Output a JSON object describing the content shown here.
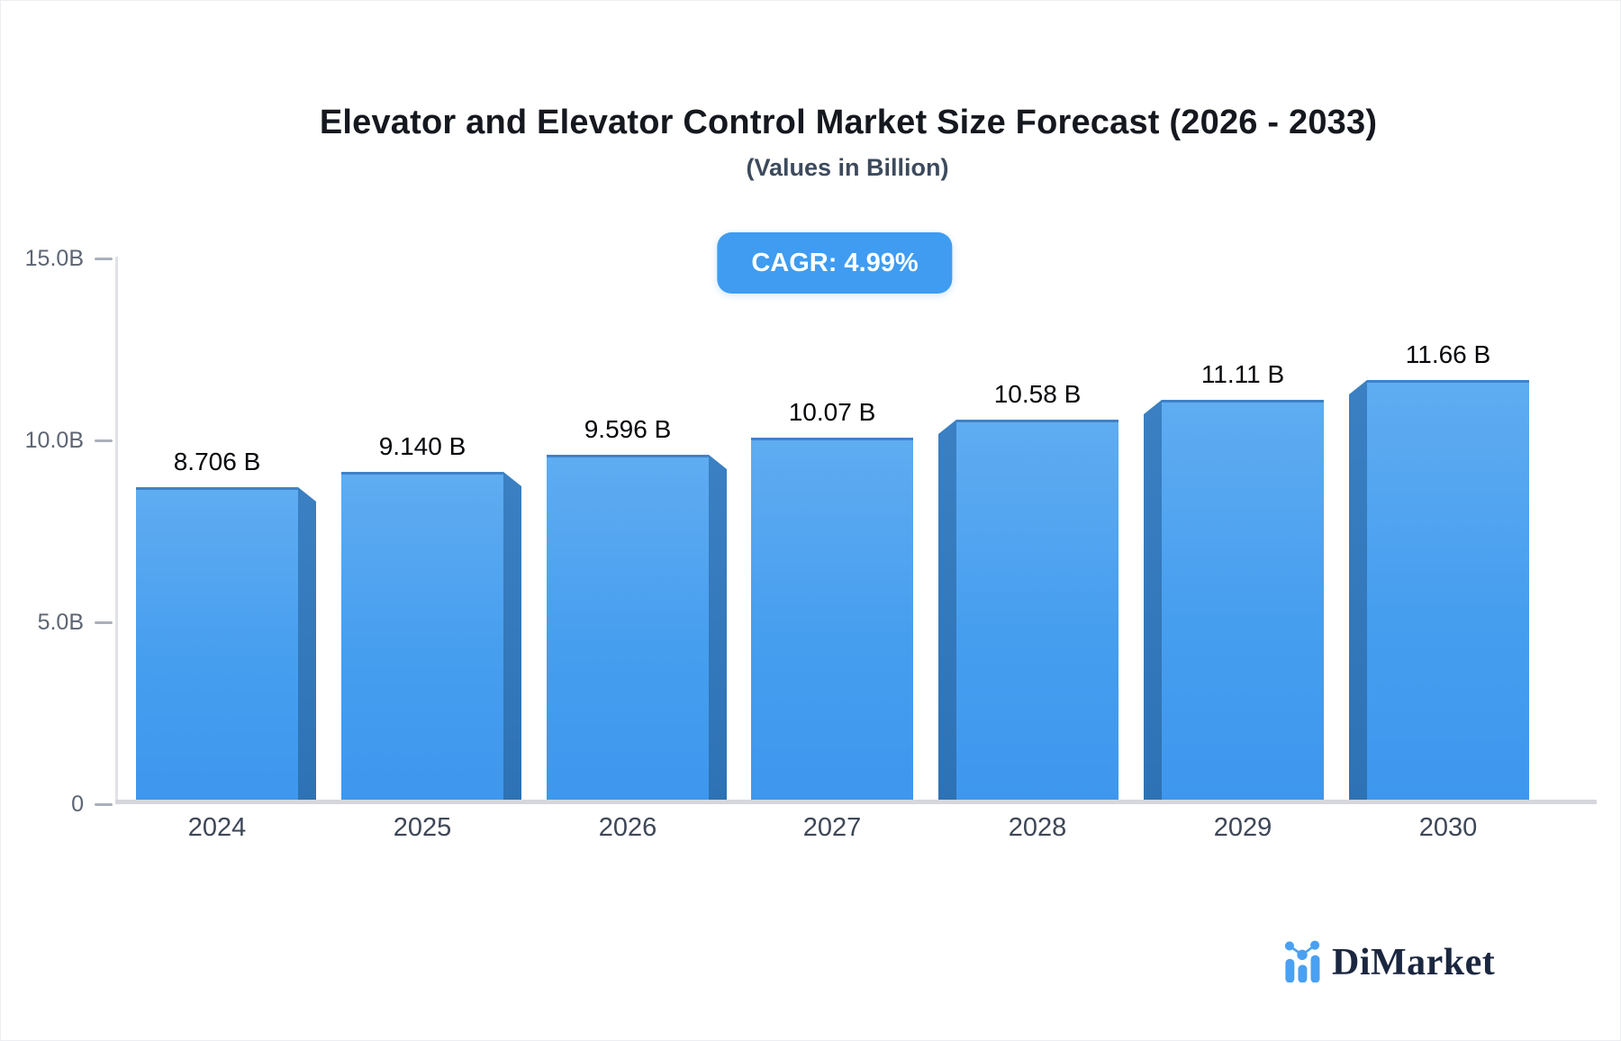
{
  "header": {
    "title": "Elevator and Elevator Control Market Size Forecast (2026 - 2033)",
    "subtitle": "(Values in Billion)"
  },
  "badge": {
    "label": "CAGR: 4.99%",
    "bg_color": "#3F9CF0",
    "text_color": "#FFFFFF"
  },
  "chart_data": {
    "type": "bar",
    "title": "Elevator and Elevator Control Market Size Forecast (2026 - 2033)",
    "subtitle": "(Values in Billion)",
    "xlabel": "",
    "ylabel": "Values in Billion",
    "categories": [
      "2024",
      "2025",
      "2026",
      "2027",
      "2028",
      "2029",
      "2030"
    ],
    "values": [
      8.706,
      9.14,
      9.596,
      10.07,
      10.58,
      11.11,
      11.66
    ],
    "value_labels": [
      "8.706 B",
      "9.140 B",
      "9.596 B",
      "10.07 B",
      "10.58 B",
      "11.11 B",
      "11.66 B"
    ],
    "ylim": [
      0,
      15
    ],
    "y_ticks": [
      {
        "label": "15.0B",
        "value": 15
      },
      {
        "label": "10.0B",
        "value": 10
      },
      {
        "label": "5.0B",
        "value": 5
      },
      {
        "label": "0",
        "value": 0
      }
    ],
    "grid": false,
    "legend": "none",
    "bar_color_top": "#5FACF1",
    "bar_color_bottom": "#3E97EE",
    "bar_side_color": "#2D72B4",
    "bar_style": "3d-extruded, perspective toward center"
  },
  "logo": {
    "text": "DiMarket",
    "icon": "bar-chart-trend-icon",
    "icon_color": "#4AA0F2",
    "text_color": "#1B2740"
  }
}
